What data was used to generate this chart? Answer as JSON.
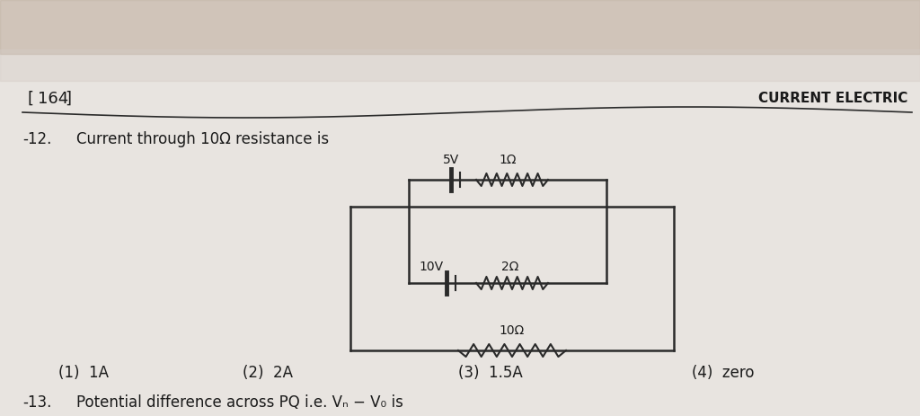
{
  "bg_color": "#e8e4e0",
  "page_number": "164",
  "header_text": "CURRENT ELECTRIC",
  "question_number": "-12.",
  "question_text": "Current through 10Ω resistance is",
  "options": [
    "(1)  1A",
    "(2)  2A",
    "(3)  1.5A",
    "(4)  zero"
  ],
  "next_question": "-13.",
  "next_question_text": "Potential difference across PQ i.e. Vₙ − V₀ is",
  "circuit": {
    "label_5V": "5V",
    "label_1ohm": "1Ω",
    "label_10V": "10V",
    "label_2ohm": "2Ω",
    "label_10ohm": "10Ω"
  },
  "font_color": "#1a1a1a",
  "line_color": "#2a2a2a",
  "top_shadow_color": "#b0a898"
}
